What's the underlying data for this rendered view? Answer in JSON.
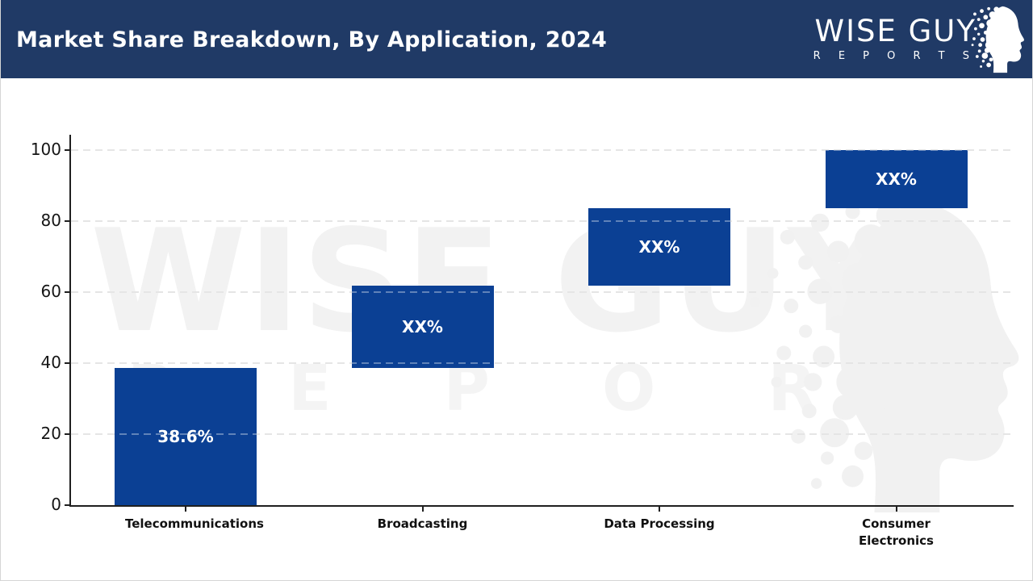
{
  "header": {
    "title": "Market Share Breakdown, By Application, 2024",
    "logo": {
      "line1": "WISE GUY",
      "line2": "R E P O R T S"
    }
  },
  "watermark": {
    "line1": "WISE GUY",
    "line2": "R E P O R T S"
  },
  "colors": {
    "header_bg": "#203a66",
    "bar": "#0b4094",
    "grid": "#d7d7d7",
    "axis": "#1f1f1f",
    "bar_label": "#ffffff",
    "watermark": "#f1f1f1"
  },
  "chart_data": {
    "type": "bar",
    "subtype": "waterfall",
    "title": "Market Share Breakdown, By Application, 2024",
    "categories": [
      "Telecommunications",
      "Broadcasting",
      "Data Processing",
      "Consumer Electronics"
    ],
    "segments": [
      {
        "category": "Telecommunications",
        "start": 0,
        "end": 38.6,
        "label": "38.6%"
      },
      {
        "category": "Broadcasting",
        "start": 38.6,
        "end": 61.8,
        "label": "XX%"
      },
      {
        "category": "Data Processing",
        "start": 61.8,
        "end": 83.7,
        "label": "XX%"
      },
      {
        "category": "Consumer Electronics",
        "start": 83.7,
        "end": 100,
        "label": "XX%"
      }
    ],
    "yticks": [
      0,
      20,
      40,
      60,
      80,
      100
    ],
    "ylim": [
      0,
      104
    ],
    "xlabel": "",
    "ylabel": "",
    "grid": "dashed-horizontal",
    "legend": "none"
  }
}
